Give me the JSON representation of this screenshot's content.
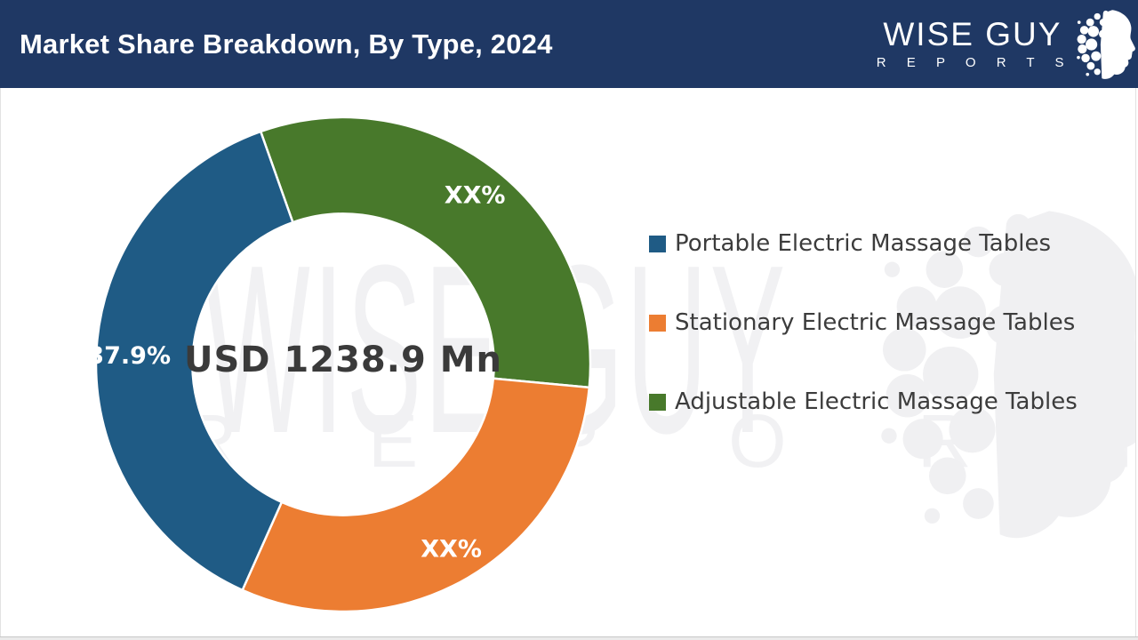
{
  "header": {
    "title": "Market Share Breakdown, By Type, 2024",
    "brand": {
      "name_line1": "WISE GUY",
      "name_line2": "R E P O R T S"
    },
    "bg_color": "#1F3864"
  },
  "watermark": {
    "line1": "WISE GUY",
    "line2": "R E P O R T S"
  },
  "chart_data": {
    "type": "pie",
    "title": "Market Share Breakdown, By Type, 2024",
    "center_label": "USD 1238.9 Mn",
    "donut_hole_ratio": 0.61,
    "start_angle_deg": 340.5,
    "clockwise": true,
    "legend_position": "right",
    "note": "Only the Portable segment percentage is shown; other segment labels are masked as XX%",
    "slices": [
      {
        "name": "Adjustable Electric Massage Tables",
        "display_pct": "XX%",
        "draw_pct": 31.9,
        "color": "#48792B"
      },
      {
        "name": "Stationary Electric Massage Tables",
        "display_pct": "XX%",
        "draw_pct": 30.2,
        "color": "#EC7D32"
      },
      {
        "name": "Portable Electric Massage Tables",
        "display_pct": "37.9%",
        "draw_pct": 37.9,
        "color": "#1F5B85"
      }
    ]
  },
  "legend": {
    "items": [
      {
        "label": "Portable Electric Massage Tables",
        "color": "#1F5B85"
      },
      {
        "label": "Stationary Electric Massage Tables",
        "color": "#EC7D32"
      },
      {
        "label": "Adjustable Electric Massage Tables",
        "color": "#48792B"
      }
    ]
  },
  "colors": {
    "header_bg": "#1F3864",
    "blue": "#1F5B85",
    "orange": "#EC7D32",
    "green": "#48792B",
    "center_text": "#3a3a3a",
    "legend_text": "#3c3c3c",
    "watermark": "#f1f1f3",
    "border": "#c7c7c7"
  }
}
